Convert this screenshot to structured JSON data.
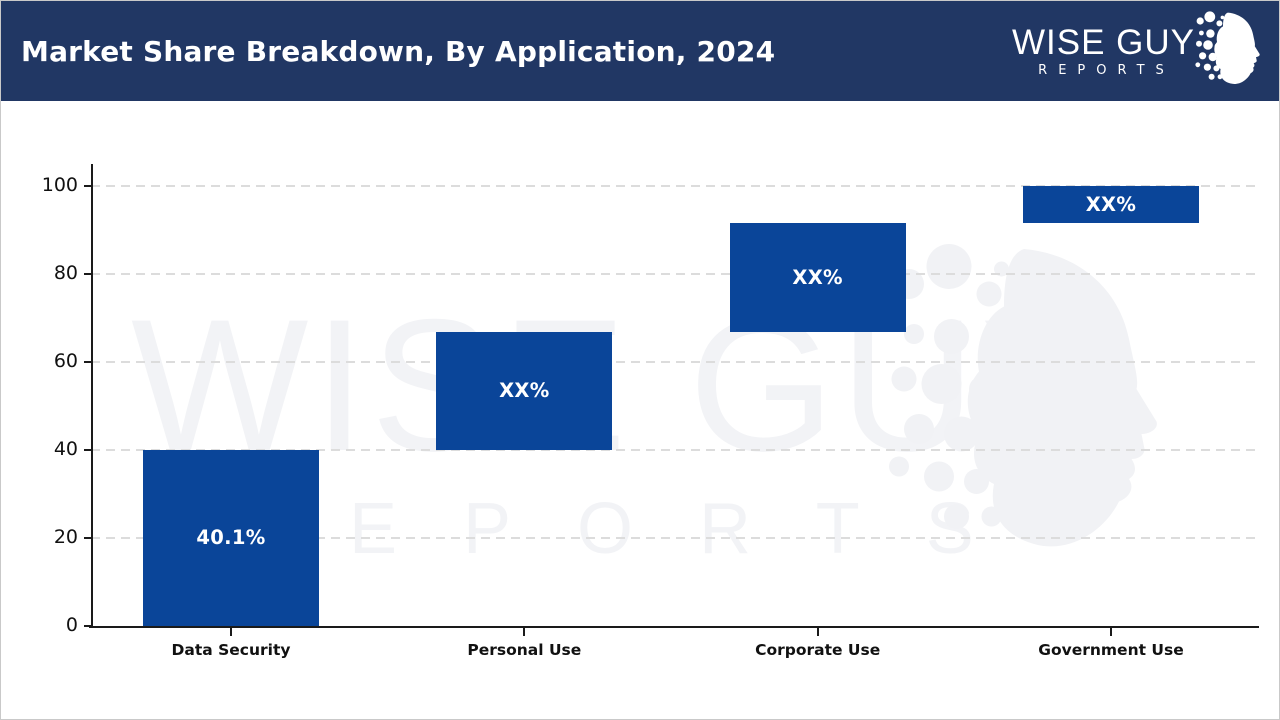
{
  "header": {
    "title": "Market Share Breakdown, By Application, 2024",
    "bg_color": "#213764",
    "logo": {
      "line1": "WISE GUY",
      "line2": "REPORTS"
    }
  },
  "watermark": {
    "line1": "WISE GUY",
    "line2": "REPORTS"
  },
  "chart_data": {
    "type": "bar",
    "subtype": "waterfall-floating-bars",
    "title": "Market Share Breakdown, By Application, 2024",
    "categories": [
      "Data Security",
      "Personal Use",
      "Corporate Use",
      "Government Use"
    ],
    "segments": [
      {
        "category": "Data Security",
        "start": 0,
        "end": 40.1,
        "label": "40.1%"
      },
      {
        "category": "Personal Use",
        "start": 40.1,
        "end": 66.8,
        "label": "XX%"
      },
      {
        "category": "Corporate Use",
        "start": 66.8,
        "end": 91.7,
        "label": "XX%"
      },
      {
        "category": "Government Use",
        "start": 91.7,
        "end": 100,
        "label": "XX%"
      }
    ],
    "yticks": [
      0,
      20,
      40,
      60,
      80,
      100
    ],
    "ylim": [
      0,
      100
    ],
    "xlabel": "",
    "ylabel": "",
    "bar_color": "#0a4599",
    "value_label_color": "#ffffff",
    "grid": "dashed-horizontal",
    "legend": "none"
  }
}
